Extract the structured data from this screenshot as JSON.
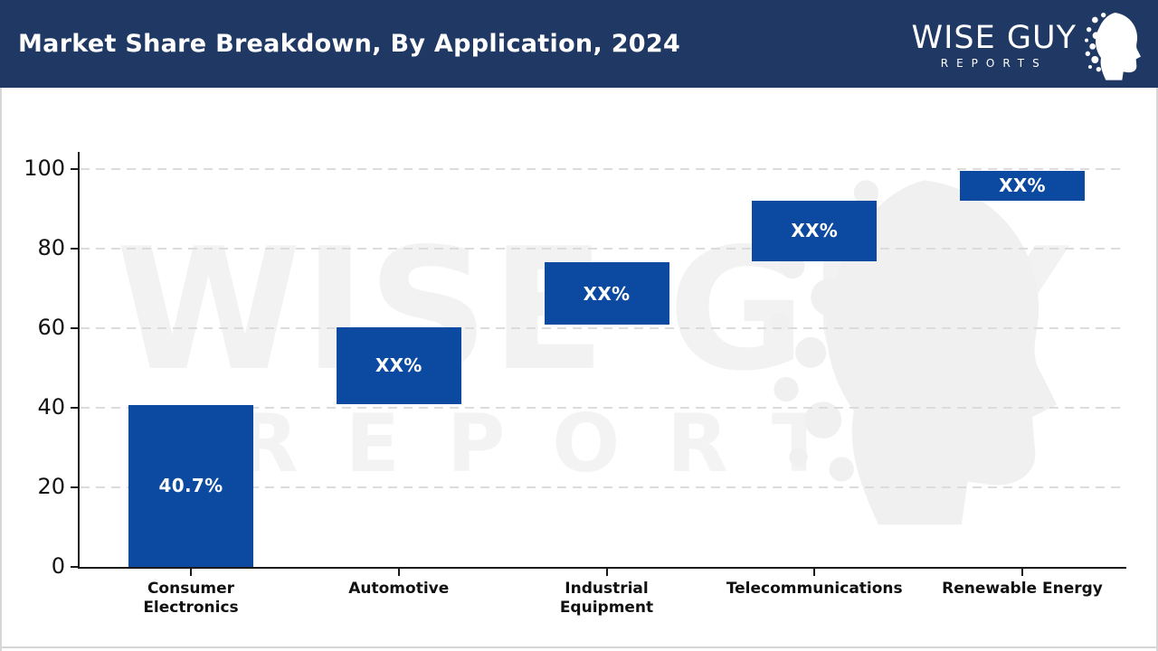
{
  "header": {
    "title": "Market Share Breakdown, By Application, 2024",
    "logo": {
      "name": "WISE GUY",
      "tagline": "REPORTS"
    }
  },
  "watermark": {
    "line1": "WISE GUY",
    "line2": "REPORTS"
  },
  "colors": {
    "header_bg": "#203864",
    "bar": "#0b4aa0",
    "grid": "#dcdcdc",
    "axis": "#1a1a1a",
    "watermark": "#f2f2f2"
  },
  "chart_data": {
    "type": "bar",
    "variant": "waterfall",
    "title": "Market Share Breakdown, By Application, 2024",
    "xlabel": "",
    "ylabel": "",
    "ylim": [
      0,
      104
    ],
    "yticks": [
      0,
      20,
      40,
      60,
      80,
      100
    ],
    "grid": true,
    "legend": false,
    "categories": [
      [
        "Consumer",
        "Electronics"
      ],
      [
        "Automotive"
      ],
      [
        "Industrial",
        "Equipment"
      ],
      [
        "Telecommunications"
      ],
      [
        "Renewable Energy"
      ]
    ],
    "bars": [
      {
        "category": "Consumer Electronics",
        "start": 0,
        "end": 40.7,
        "label": "40.7%"
      },
      {
        "category": "Automotive",
        "start": 41.0,
        "end": 60.3,
        "label": "XX%"
      },
      {
        "category": "Industrial Equipment",
        "start": 60.8,
        "end": 76.6,
        "label": "XX%"
      },
      {
        "category": "Telecommunications",
        "start": 76.9,
        "end": 92.0,
        "label": "XX%"
      },
      {
        "category": "Renewable Energy",
        "start": 92.1,
        "end": 99.6,
        "label": "XX%"
      }
    ]
  }
}
